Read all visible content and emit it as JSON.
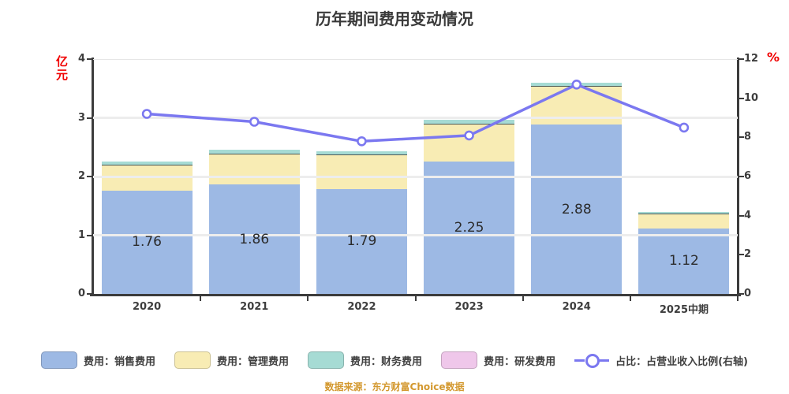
{
  "title": "历年期间费用变动情况",
  "left_axis": {
    "unit": "亿元",
    "ticks": [
      "4",
      "3",
      "2",
      "1",
      "0"
    ]
  },
  "right_axis": {
    "unit": "%",
    "ticks": [
      "12",
      "10",
      "8",
      "6",
      "4",
      "2",
      "0"
    ]
  },
  "footer": {
    "source": "数据来源：东方财富Choice数据"
  },
  "legend": {
    "items": [
      {
        "label": "费用：销售费用",
        "color": "#9db9e4",
        "type": "bar"
      },
      {
        "label": "费用：管理费用",
        "color": "#f8ecb4",
        "type": "bar"
      },
      {
        "label": "费用：财务费用",
        "color": "#a6dbd4",
        "type": "bar"
      },
      {
        "label": "费用：研发费用",
        "color": "#efc7ea",
        "type": "bar"
      },
      {
        "label": "占比：占营业收入比例(右轴)",
        "color": "#7b78f0",
        "type": "line"
      }
    ]
  },
  "chart_data": {
    "type": "bar",
    "subtype": "stacked-bar-with-line",
    "categories": [
      "2020",
      "2021",
      "2022",
      "2023",
      "2024",
      "2025中期"
    ],
    "bar_unit": "亿元",
    "line_unit": "%",
    "ylim": [
      0,
      4
    ],
    "y2lim": [
      0,
      12
    ],
    "gridlines": [
      1,
      2,
      3
    ],
    "series": [
      {
        "name": "费用：销售费用",
        "color": "#9db9e4",
        "values": [
          1.76,
          1.86,
          1.79,
          2.25,
          2.88,
          1.12
        ]
      },
      {
        "name": "费用：管理费用",
        "color": "#f8ecb4",
        "values": [
          0.43,
          0.51,
          0.57,
          0.64,
          0.65,
          0.23
        ]
      },
      {
        "name": "费用：财务费用",
        "color": "#a6dbd4",
        "values": [
          0.07,
          0.08,
          0.07,
          0.08,
          0.07,
          0.05
        ]
      },
      {
        "name": "费用：研发费用",
        "color": "#efc7ea",
        "values": [
          0,
          0,
          0,
          0,
          0,
          0
        ]
      }
    ],
    "line_series": {
      "name": "占比：占营业收入比例(右轴)",
      "color": "#7b78f0",
      "values": [
        9.2,
        8.8,
        7.8,
        8.1,
        10.7,
        8.5
      ]
    },
    "bar_labels": [
      "1.76",
      "1.86",
      "1.79",
      "2.25",
      "2.88",
      "1.12"
    ],
    "bar_label_series": 0,
    "legend_position": "bottom",
    "grid": true
  }
}
